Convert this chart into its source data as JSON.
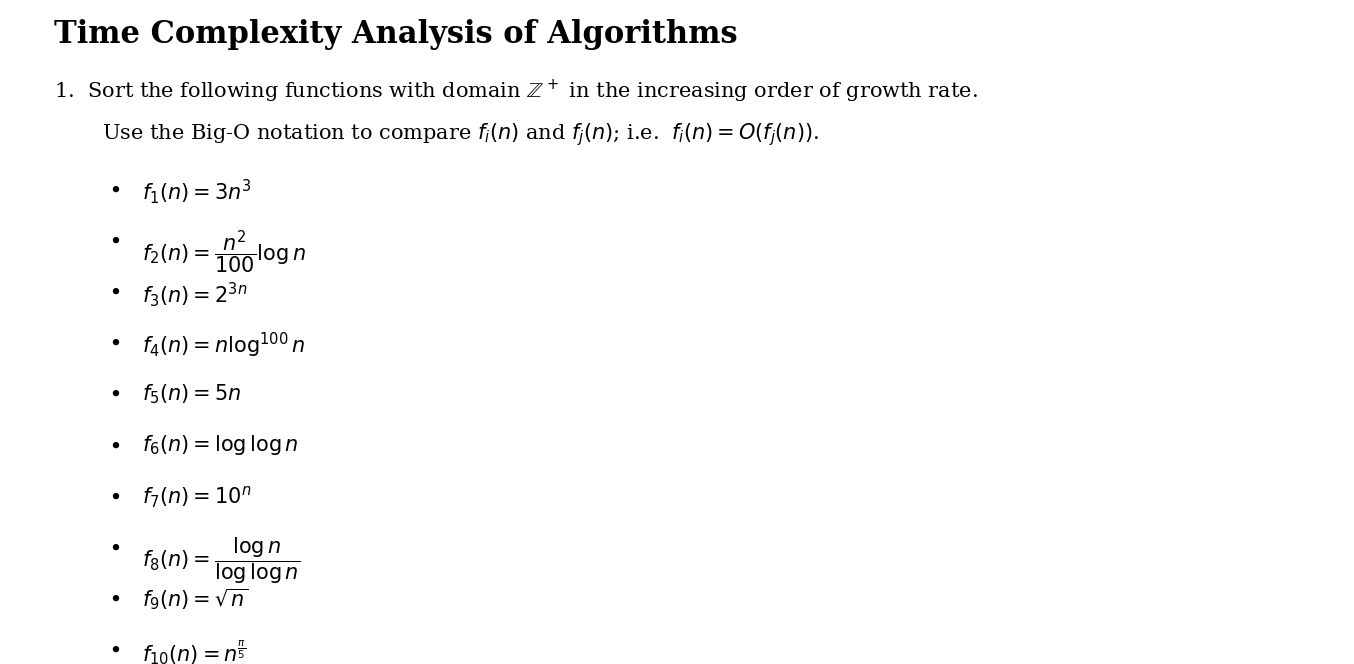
{
  "title": "Time Complexity Analysis of Algorithms",
  "background_color": "#ffffff",
  "text_color": "#000000",
  "title_fontsize": 22,
  "body_fontsize": 15,
  "figsize": [
    13.54,
    6.64
  ],
  "dpi": 100,
  "problem_line1": "1.\\enspace Sort the following functions with domain $\\mathbb{Z}^+$ in the increasing order of growth rate.",
  "problem_line2": "\\enspace\\enspace\\enspace Use the Big-O notation to compare $f_i(n)$ and $f_j(n)$; i.e.\\; $f_i(n) = O(f_j(n))$.",
  "functions": [
    "$f_1(n) = 3n^3$",
    "$f_2(n) = \\dfrac{n^2}{100} \\log n$",
    "$f_3(n) = 2^{3n}$",
    "$f_4(n) = n \\log^{100} n$",
    "$f_5(n) = 5n$",
    "$f_6(n) = \\log \\log n$",
    "$f_7(n) = 10^n$",
    "$f_8(n) = \\dfrac{\\log n}{\\log \\log n}$",
    "$f_9(n) = \\sqrt{n}$",
    "$f_{10}(n) = n^{\\frac{\\pi}{5}}$"
  ]
}
